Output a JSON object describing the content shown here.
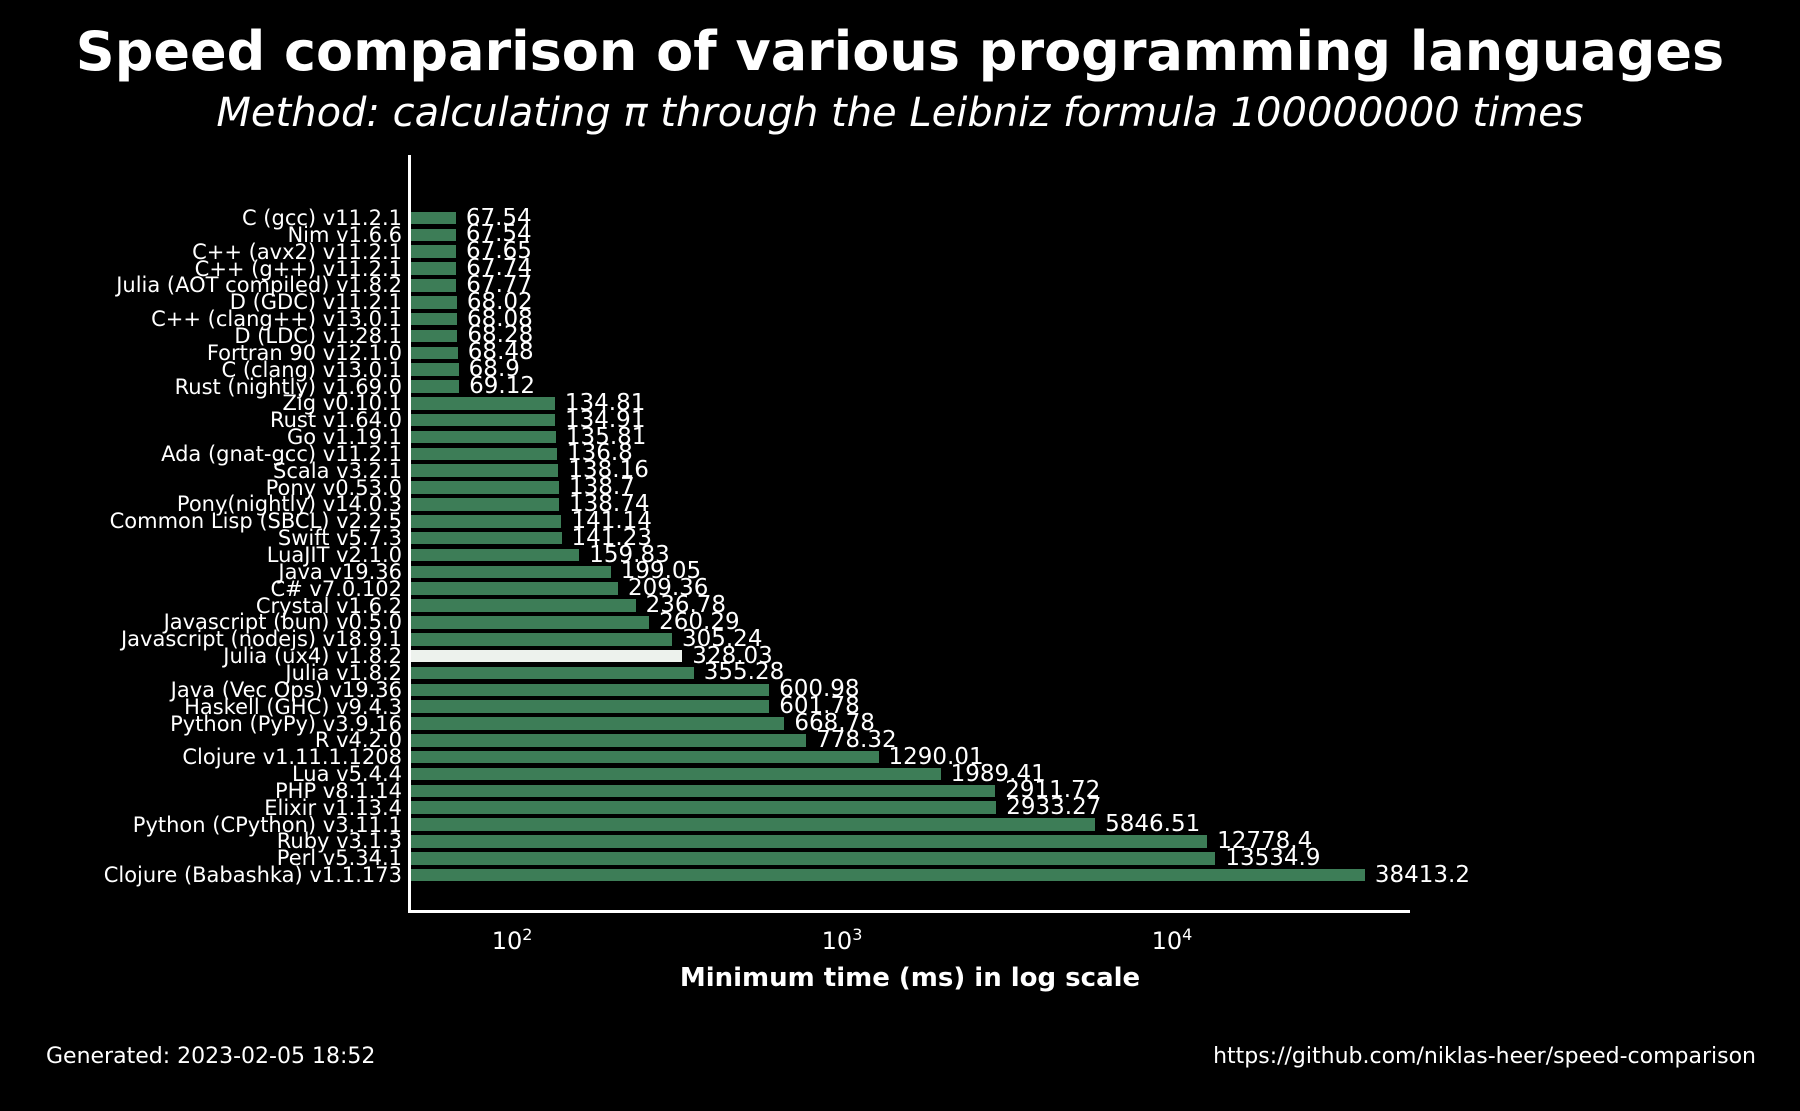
{
  "title": "Speed comparison of various programming languages",
  "subtitle": "Method: calculating π through the Leibniz formula 100000000 times",
  "footer": {
    "generated": "Generated: 2023-02-05 18:52",
    "url": "https://github.com/niklas-heer/speed-comparison"
  },
  "colors": {
    "background": "#000000",
    "bar": "#3d7d57",
    "highlight_bar": "#edf2ed",
    "text": "#ffffff",
    "spine": "#ffffff"
  },
  "chart_data": {
    "type": "bar",
    "orientation": "horizontal",
    "x_scale": "log",
    "xlabel": "Minimum time (ms) in log scale",
    "x_ticks": [
      "10^2",
      "10^3",
      "10^4"
    ],
    "x_range": [
      49.4,
      51900
    ],
    "grid": false,
    "legend": false,
    "highlight_index": 26,
    "categories": [
      "C (gcc) v11.2.1",
      "Nim v1.6.6",
      "C++ (avx2) v11.2.1",
      "C++ (g++) v11.2.1",
      "Julia (AOT compiled) v1.8.2",
      "D (GDC) v11.2.1",
      "C++ (clang++) v13.0.1",
      "D (LDC) v1.28.1",
      "Fortran 90 v12.1.0",
      "C (clang) v13.0.1",
      "Rust (nightly) v1.69.0",
      "Zig v0.10.1",
      "Rust v1.64.0",
      "Go v1.19.1",
      "Ada (gnat-gcc) v11.2.1",
      "Scala v3.2.1",
      "Pony v0.53.0",
      "Pony(nightly) v14.0.3",
      "Common Lisp (SBCL) v2.2.5",
      "Swift v5.7.3",
      "LuaJIT v2.1.0",
      "Java v19.36",
      "C# v7.0.102",
      "Crystal v1.6.2",
      "Javascript (bun) v0.5.0",
      "Javascript (nodejs) v18.9.1",
      "Julia (ux4) v1.8.2",
      "Julia v1.8.2",
      "Java (Vec Ops) v19.36",
      "Haskell (GHC) v9.4.3",
      "Python (PyPy) v3.9.16",
      "R v4.2.0",
      "Clojure v1.11.1.1208",
      "Lua v5.4.4",
      "PHP v8.1.14",
      "Elixir v1.13.4",
      "Python (CPython) v3.11.1",
      "Ruby v3.1.3",
      "Perl v5.34.1",
      "Clojure (Babashka) v1.1.173"
    ],
    "values": [
      67.54,
      67.54,
      67.65,
      67.74,
      67.77,
      68.02,
      68.08,
      68.28,
      68.48,
      68.9,
      69.12,
      134.81,
      134.91,
      135.81,
      136.8,
      138.16,
      138.7,
      138.74,
      141.14,
      141.23,
      159.83,
      199.05,
      209.36,
      236.78,
      260.29,
      305.24,
      328.03,
      355.28,
      600.98,
      601.78,
      668.78,
      778.32,
      1290.01,
      1989.41,
      2911.72,
      2933.27,
      5846.51,
      12778.4,
      13534.9,
      38413.2
    ],
    "value_labels": [
      "67.54",
      "67.54",
      "67.65",
      "67.74",
      "67.77",
      "68.02",
      "68.08",
      "68.28",
      "68.48",
      "68.9",
      "69.12",
      "134.81",
      "134.91",
      "135.81",
      "136.8",
      "138.16",
      "138.7",
      "138.74",
      "141.14",
      "141.23",
      "159.83",
      "199.05",
      "209.36",
      "236.78",
      "260.29",
      "305.24",
      "328.03",
      "355.28",
      "600.98",
      "601.78",
      "668.78",
      "778.32",
      "1290.01",
      "1989.41",
      "2911.72",
      "2933.27",
      "5846.51",
      "12778.4",
      "13534.9",
      "38413.2"
    ]
  }
}
